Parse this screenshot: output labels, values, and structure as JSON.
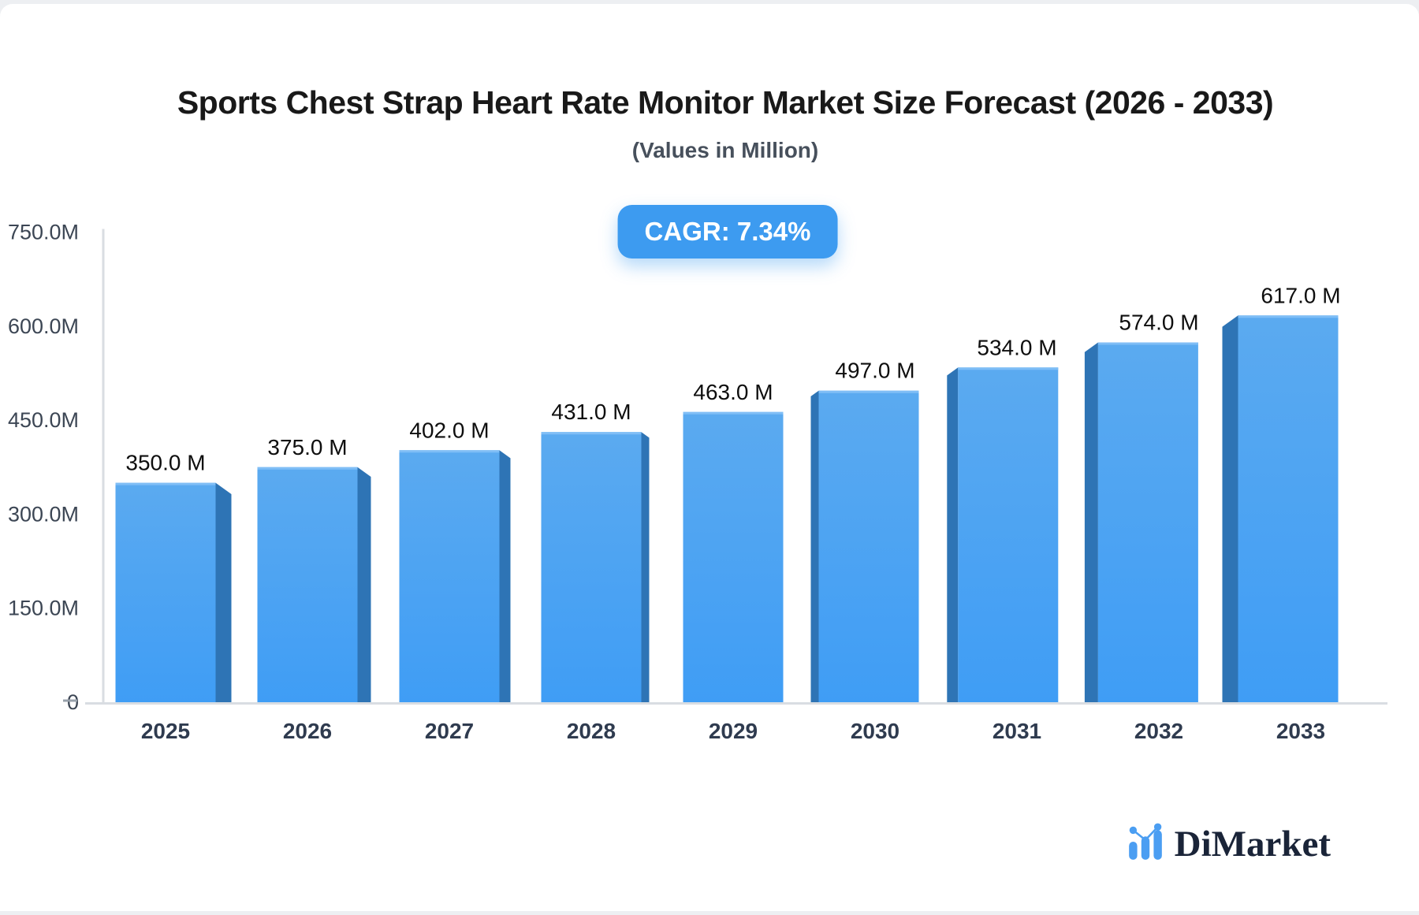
{
  "header": {
    "title": "Sports Chest Strap Heart Rate Monitor Market Size Forecast (2026 - 2033)",
    "subtitle": "(Values in Million)",
    "cagr_badge": "CAGR: 7.34%"
  },
  "brand": {
    "name": "DiMarket",
    "icon": "mini-bar-chart-logo"
  },
  "colors": {
    "accent_blue": "#3d9bf0",
    "bar_face_top": "#5baaf0",
    "bar_face_bottom": "#3f9df5",
    "bar_side": "#2e74b5",
    "bar_top_highlight": "#7fbef6",
    "axis_line": "#d9dde2",
    "zero_dash": "#98a1ab",
    "ytick_text": "#3c4654",
    "year_text": "#2f3b4f",
    "value_text": "#0e0e0e",
    "brand_icon": "#4b9ef2"
  },
  "chart_data": {
    "type": "bar",
    "title": "Sports Chest Strap Heart Rate Monitor Market Size Forecast (2026 - 2033)",
    "subtitle": "(Values in Million)",
    "cagr_annotation": "CAGR: 7.34%",
    "categories": [
      "2025",
      "2026",
      "2027",
      "2028",
      "2029",
      "2030",
      "2031",
      "2032",
      "2033"
    ],
    "values": [
      350,
      375,
      402,
      431,
      463,
      497,
      534,
      574,
      617
    ],
    "value_labels": [
      "350.0 M",
      "375.0 M",
      "402.0 M",
      "431.0 M",
      "463.0 M",
      "497.0 M",
      "534.0 M",
      "574.0 M",
      "617.0 M"
    ],
    "unit_suffix": "M",
    "ylim": [
      0,
      750
    ],
    "yticks": [
      0,
      150,
      300,
      450,
      600,
      750
    ],
    "ytick_labels": [
      "0",
      "150.0M",
      "300.0M",
      "450.0M",
      "600.0M",
      "750.0M"
    ],
    "grid": false,
    "legend": false,
    "bar_style": "3d-perspective-blue"
  }
}
